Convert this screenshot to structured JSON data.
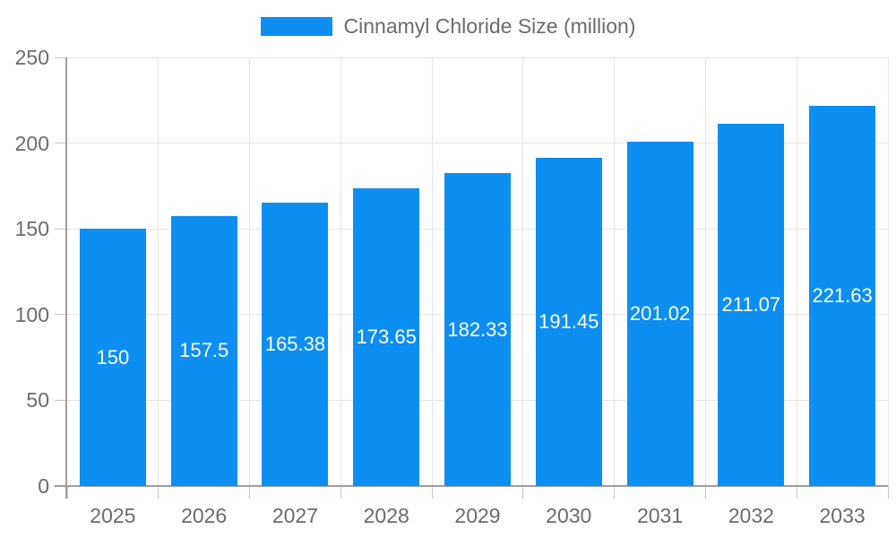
{
  "chart_data": {
    "type": "bar",
    "title": "Cinnamyl Chloride Size (million)",
    "legend_entries": [
      "Cinnamyl Chloride Size (million)"
    ],
    "legend_position": "top",
    "categories": [
      "2025",
      "2026",
      "2027",
      "2028",
      "2029",
      "2030",
      "2031",
      "2032",
      "2033"
    ],
    "series": [
      {
        "name": "Cinnamyl Chloride Size (million)",
        "values": [
          150,
          157.5,
          165.38,
          173.65,
          182.33,
          191.45,
          201.02,
          211.07,
          221.63
        ],
        "value_labels": [
          "150",
          "157.5",
          "165.38",
          "173.65",
          "182.33",
          "191.45",
          "201.02",
          "211.07",
          "221.63"
        ]
      }
    ],
    "xlabel": "",
    "ylabel": "",
    "ylim": [
      0,
      250
    ],
    "yticks": [
      0,
      50,
      100,
      150,
      200,
      250
    ],
    "grid": true,
    "colors": {
      "bar": "#0d8ff2",
      "bar_label": "#ffffff",
      "axis_text": "#6b6b6b",
      "axis_line": "#9e9e9e",
      "gridline": "#e7e7e7",
      "tick": "#c6c6c6",
      "background": "#ffffff"
    }
  }
}
